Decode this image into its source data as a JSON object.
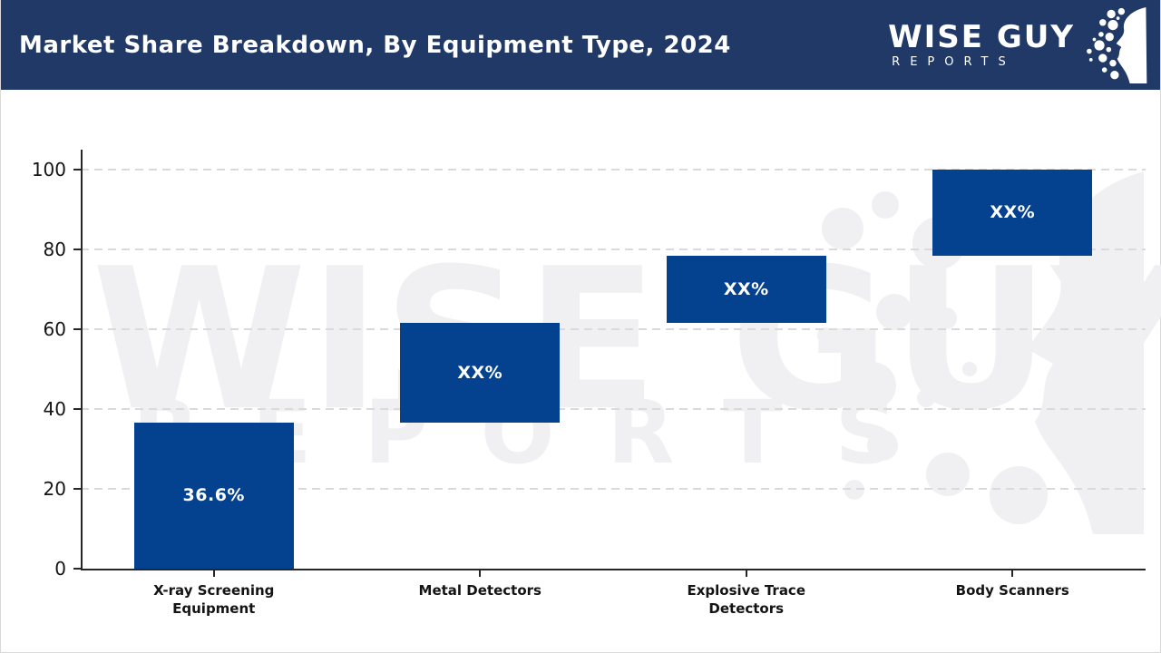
{
  "header": {
    "title": "Market Share Breakdown, By Equipment Type, 2024",
    "logo": {
      "line1": "WISE GUY",
      "line2": "REPORTS"
    }
  },
  "watermark": {
    "line1": "WISE GUY",
    "line2": "REPORTS"
  },
  "chart_data": {
    "type": "bar",
    "subtype": "waterfall",
    "title": "Market Share Breakdown, By Equipment Type, 2024",
    "categories": [
      "X-ray Screening Equipment",
      "Metal Detectors",
      "Explosive Trace Detectors",
      "Body Scanners"
    ],
    "series": [
      {
        "name": "Market Share (%)",
        "bars": [
          {
            "category": "X-ray Screening Equipment",
            "base": 0,
            "top": 36.6,
            "label": "36.6%"
          },
          {
            "category": "Metal Detectors",
            "base": 36.5,
            "top": 61.5,
            "label": "XX%"
          },
          {
            "category": "Explosive Trace Detectors",
            "base": 61.5,
            "top": 78.5,
            "label": "XX%"
          },
          {
            "category": "Body Scanners",
            "base": 78.5,
            "top": 100,
            "label": "XX%"
          }
        ]
      }
    ],
    "xlabel": "",
    "ylabel": "",
    "ylim": [
      0,
      100
    ],
    "yticks": [
      0,
      20,
      40,
      60,
      80,
      100
    ],
    "grid": "horizontal-dashed",
    "legend": "none",
    "bar_color": "#04418f",
    "bar_label_color": "#ffffff"
  },
  "colors": {
    "header_bg": "#213966",
    "bar": "#04418f",
    "gridline": "#dadada",
    "axis": "#262626",
    "watermark": "#f0f0f2",
    "text": "#141414",
    "title_text": "#ffffff"
  }
}
